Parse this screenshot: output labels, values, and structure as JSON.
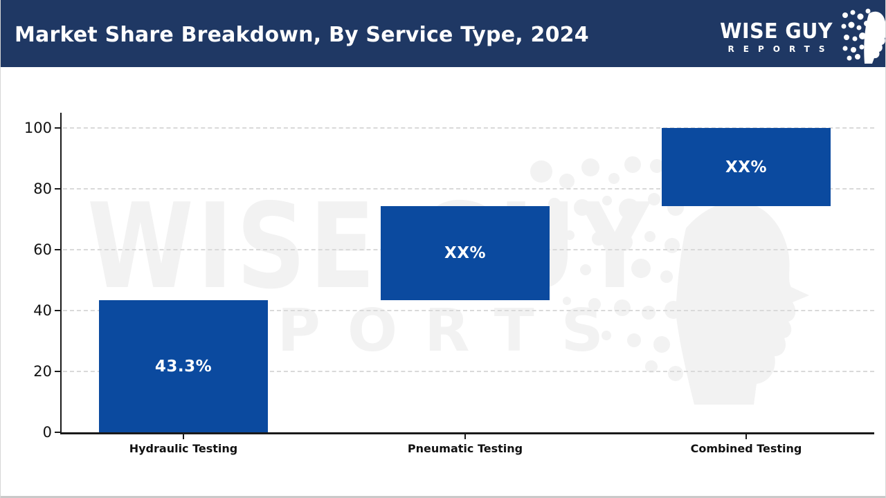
{
  "header": {
    "title": "Market Share Breakdown, By Service Type, 2024",
    "logo_line1": "WISE GUY",
    "logo_line2": "REPORTS"
  },
  "watermark": {
    "line1": "WISE GUY",
    "line2": "REPORTS"
  },
  "chart_data": {
    "type": "bar",
    "subtype": "floating-segment-breakdown",
    "title": "Market Share Breakdown, By Service Type, 2024",
    "categories": [
      "Hydraulic Testing",
      "Pneumatic Testing",
      "Combined Testing"
    ],
    "segments": [
      {
        "category": "Hydraulic Testing",
        "start": 0,
        "end": 43.3,
        "label": "43.3%"
      },
      {
        "category": "Pneumatic Testing",
        "start": 43.3,
        "end": 74.3,
        "label": "XX%"
      },
      {
        "category": "Combined Testing",
        "start": 74.3,
        "end": 100,
        "label": "XX%"
      }
    ],
    "xlabel": "",
    "ylabel": "",
    "ylim": [
      0,
      105
    ],
    "yticks": [
      0,
      20,
      40,
      60,
      80,
      100
    ],
    "grid": "horizontal-dashed",
    "legend": "none",
    "bar_color": "#0b4a9f",
    "bar_label_color": "#ffffff",
    "header_bg_color": "#1f3864",
    "gridline_color": "#d9d9d9",
    "watermark_color": "#f2f2f2"
  }
}
